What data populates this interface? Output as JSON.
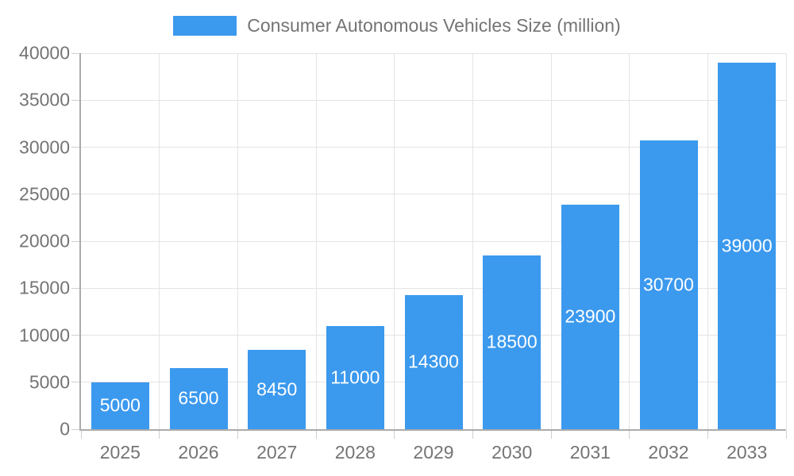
{
  "chart_data": {
    "type": "bar",
    "title": "Consumer Autonomous Vehicles Size (million)",
    "categories": [
      "2025",
      "2026",
      "2027",
      "2028",
      "2029",
      "2030",
      "2031",
      "2032",
      "2033"
    ],
    "values": [
      5000,
      6500,
      8450,
      11000,
      14300,
      18500,
      23900,
      30700,
      39000
    ],
    "xlabel": "",
    "ylabel": "",
    "ylim": [
      0,
      40000
    ],
    "yticks": [
      0,
      5000,
      10000,
      15000,
      20000,
      25000,
      30000,
      35000,
      40000
    ],
    "grid": true,
    "legend_position": "top",
    "bar_labels_inside": true,
    "colors": {
      "bar": "#3B99EE",
      "bar_label": "#FFFFFF",
      "axis_text": "#747474",
      "axis_line": "#ABABAB",
      "tick": "#CFCFCF",
      "grid": "#E4E4E4",
      "background": "#FFFFFF"
    }
  }
}
